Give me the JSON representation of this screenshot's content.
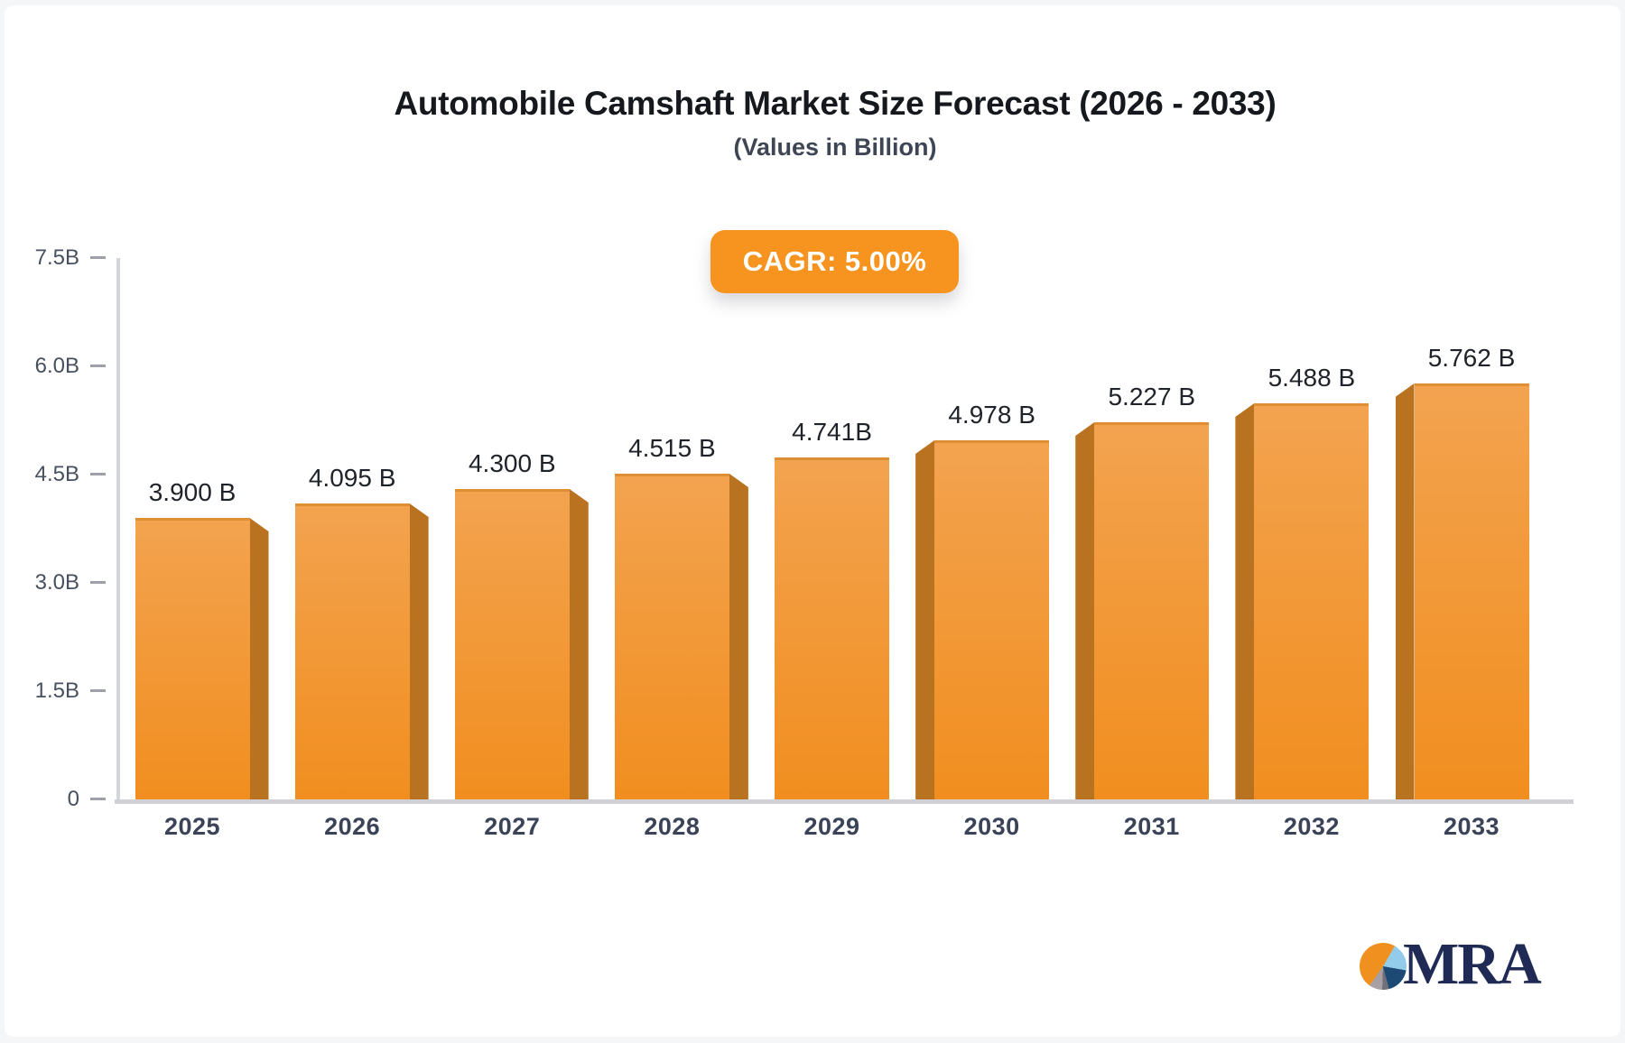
{
  "title": "Automobile Camshaft Market Size Forecast (2026 - 2033)",
  "subtitle": "(Values in Billion)",
  "badge": {
    "label": "CAGR: 5.00%"
  },
  "logo": {
    "text": "MRA",
    "pie_icon_colors": [
      "#F0911F",
      "#92CCEA",
      "#1C4A74",
      "#A79FA3"
    ]
  },
  "chart_data": {
    "type": "bar",
    "title": "Automobile Camshaft Market Size Forecast (2026 - 2033)",
    "subtitle": "(Values in Billion)",
    "cagr_label": "CAGR: 5.00%",
    "unit": "Billion",
    "categories": [
      "2025",
      "2026",
      "2027",
      "2028",
      "2029",
      "2030",
      "2031",
      "2032",
      "2033"
    ],
    "values": [
      3.9,
      4.095,
      4.3,
      4.515,
      4.741,
      4.978,
      5.227,
      5.488,
      5.762
    ],
    "value_labels": [
      "3.900 B",
      "4.095 B",
      "4.300 B",
      "4.515 B",
      "4.741B",
      "4.978 B",
      "5.227 B",
      "5.488 B",
      "5.762 B"
    ],
    "ylim": [
      0,
      7.5
    ],
    "yticks": [
      {
        "label": "7.5B",
        "value": 7.5
      },
      {
        "label": "6.0B",
        "value": 6.0
      },
      {
        "label": "4.5B",
        "value": 4.5
      },
      {
        "label": "3.0B",
        "value": 3.0
      },
      {
        "label": "1.5B",
        "value": 1.5
      },
      {
        "label": "0",
        "value": 0
      }
    ],
    "grid": false,
    "legend": null,
    "bar_style": "3d-perspective-center",
    "colors": {
      "bar_top": "#F3A350",
      "bar_bottom": "#F18E1F",
      "bar_side": "#B97320",
      "bar_top_edge": "#DE8F33",
      "badge_bg": "#F6941F",
      "axis": "#D4D5DA"
    }
  }
}
